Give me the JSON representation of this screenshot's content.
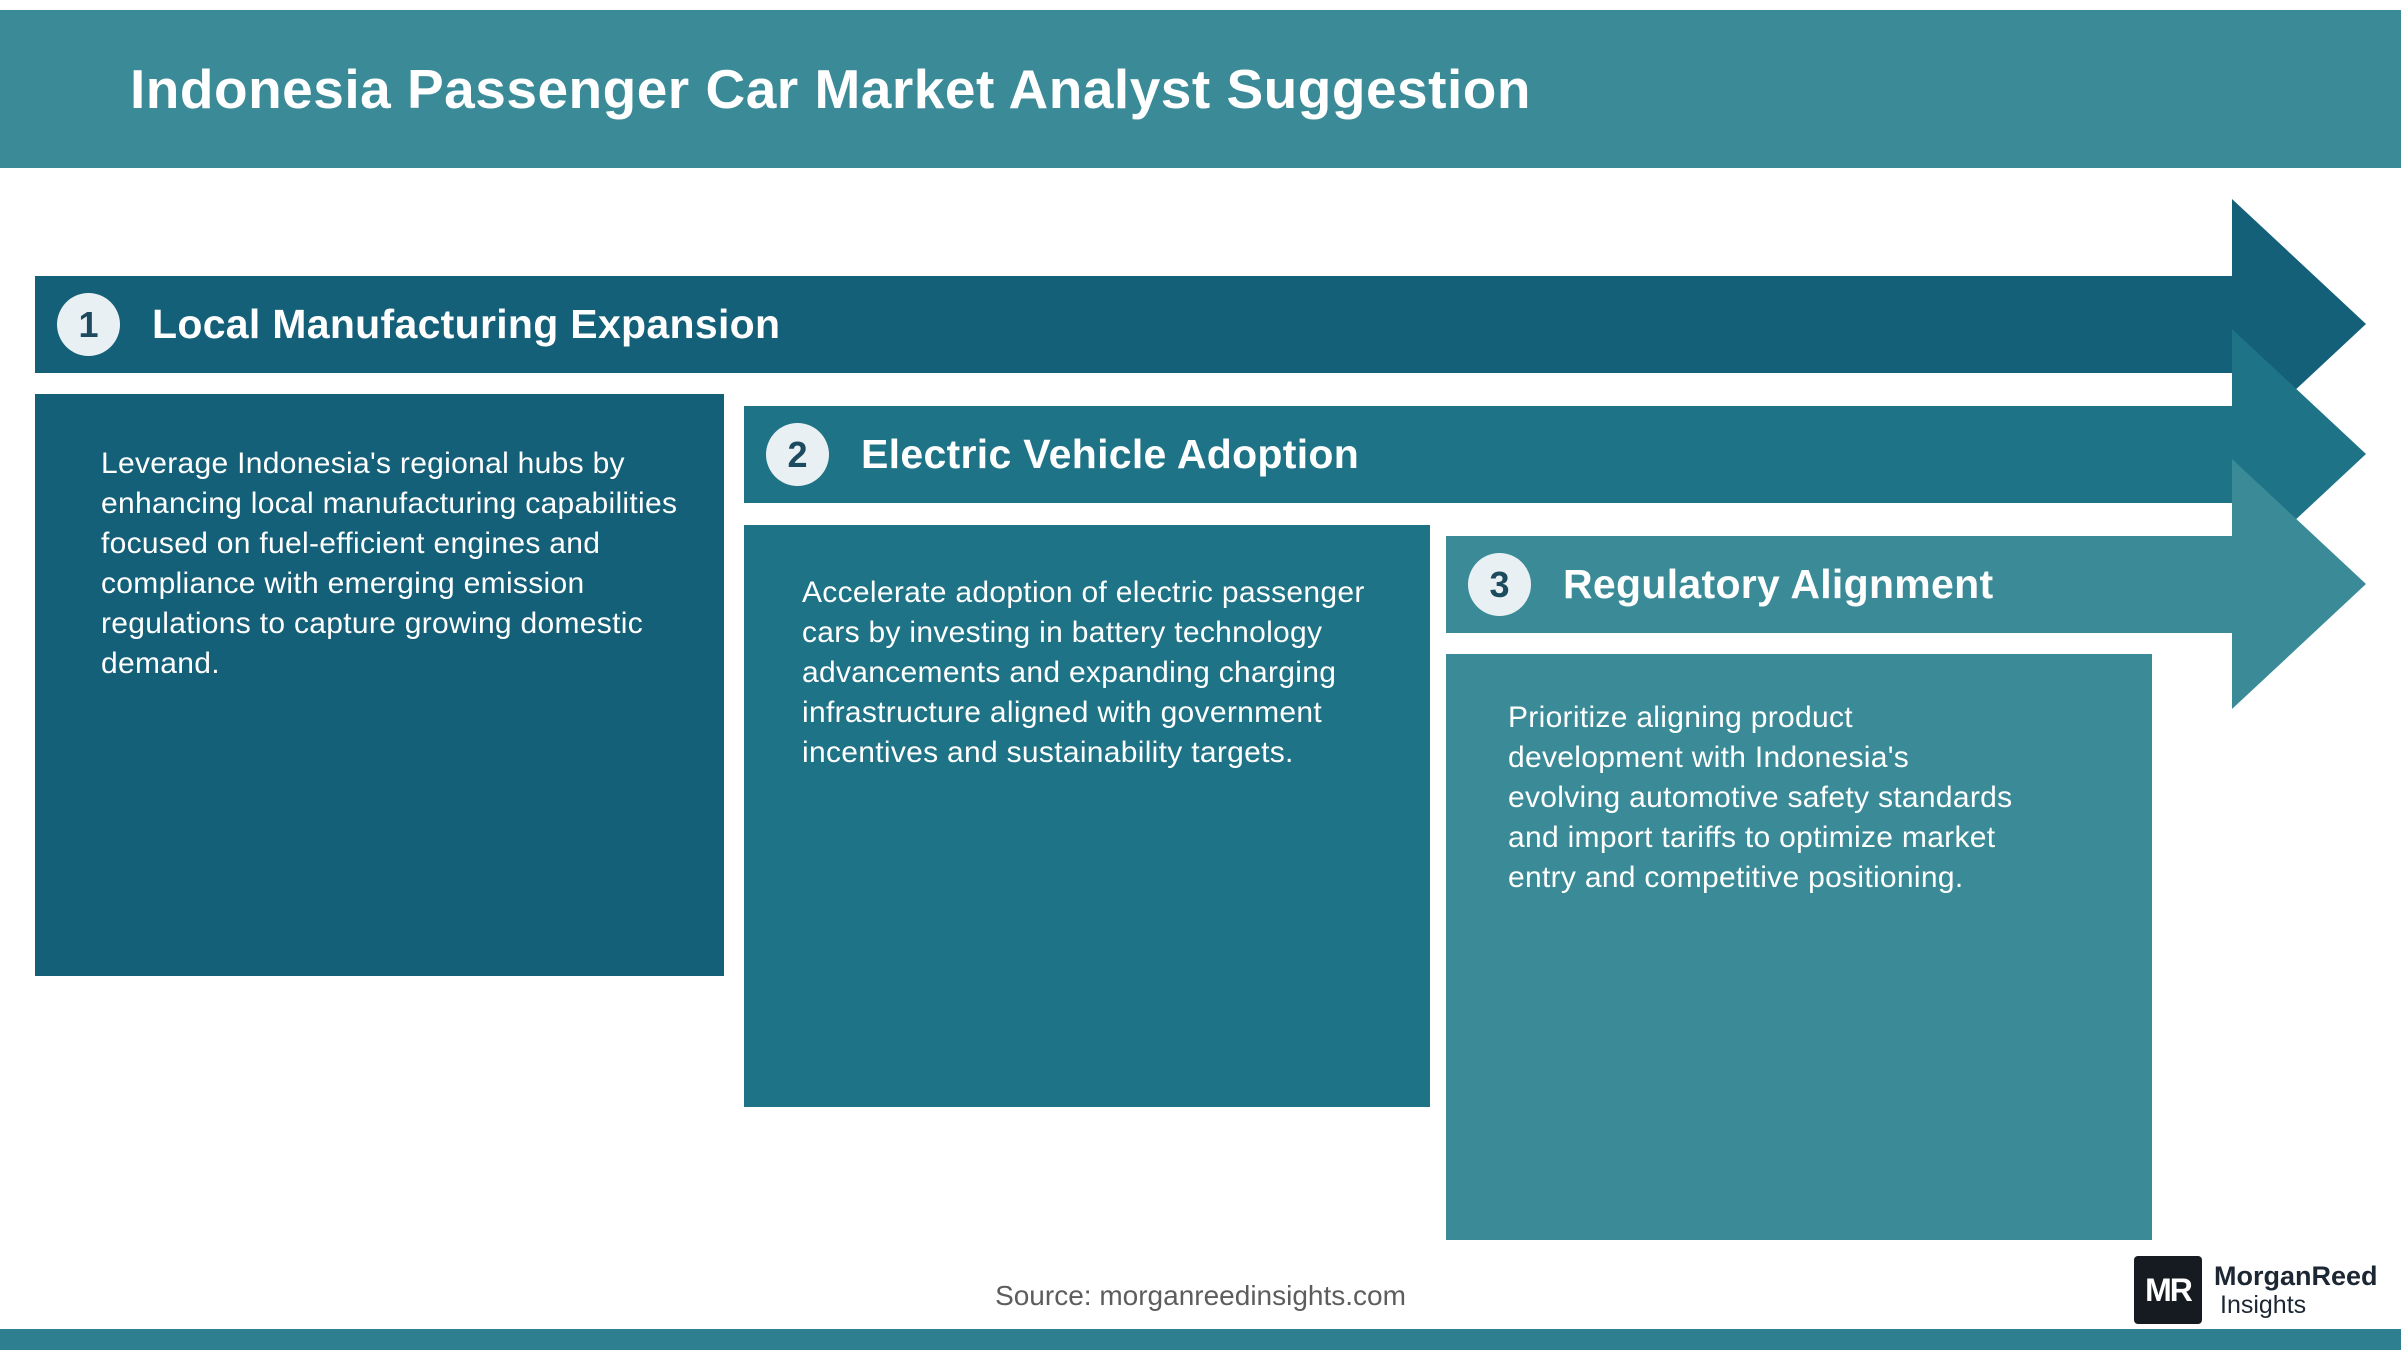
{
  "header": {
    "title": "Indonesia Passenger Car Market Analyst Suggestion"
  },
  "steps": [
    {
      "number": "1",
      "title": "Local Manufacturing Expansion",
      "description": "Leverage Indonesia's regional hubs by enhancing local manufacturing capabilities focused on fuel-efficient engines and compliance with emerging emission regulations to capture growing domestic demand.",
      "color": "#156079"
    },
    {
      "number": "2",
      "title": "Electric Vehicle Adoption",
      "description": "Accelerate adoption of electric passenger cars by investing in battery technology advancements and expanding charging infrastructure aligned with government incentives and sustainability targets.",
      "color": "#1f7386"
    },
    {
      "number": "3",
      "title": "Regulatory Alignment",
      "description": "Prioritize aligning product development with Indonesia's evolving automotive safety standards and import tariffs to optimize market entry and competitive positioning.",
      "color": "#3a8b97"
    }
  ],
  "footer": {
    "source": "Source: morganreedinsights.com",
    "logo_monogram": "MR",
    "brand_name": "MorganReed",
    "brand_suffix": "Insights"
  },
  "colors": {
    "header_bg": "#3a8b97",
    "step1": "#156079",
    "step2": "#1f7386",
    "step3": "#3a8b97",
    "bottom_strip": "#2e7f8f",
    "badge_bg": "#e9f0f4",
    "badge_text": "#1c4a5e"
  }
}
